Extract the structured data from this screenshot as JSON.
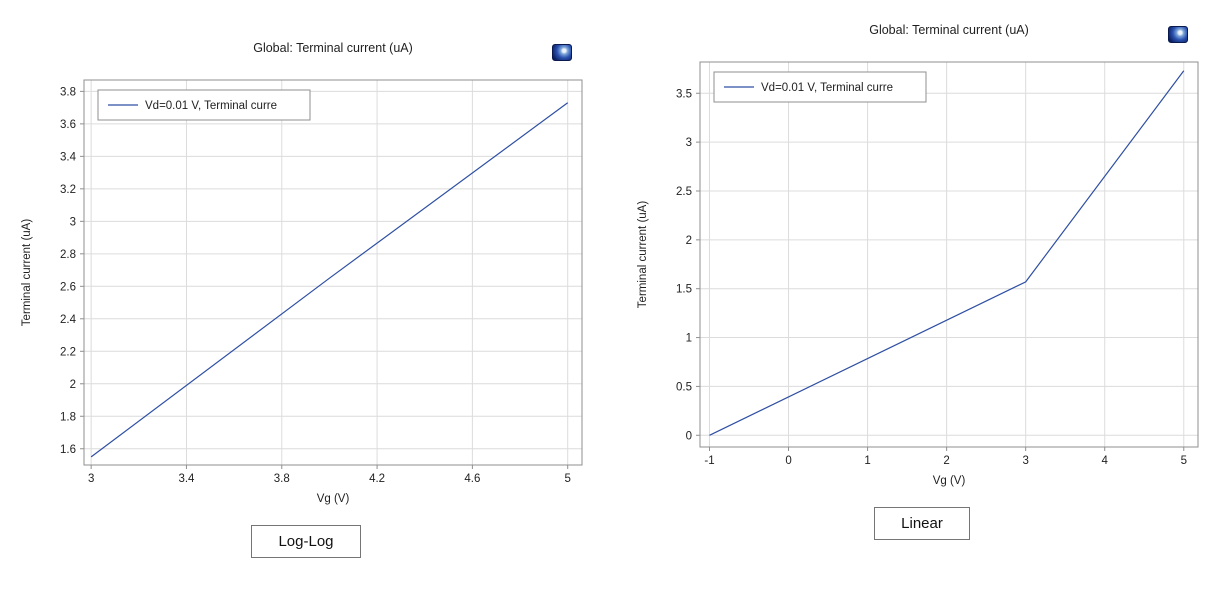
{
  "colors": {
    "line": "#2e4fa3",
    "grid": "#dcdcdc",
    "frame": "#8f8f8f",
    "text": "#1f1f1f",
    "caption_border": "#757575",
    "icon_navy": "#0a1c5a",
    "icon_blue": "#2a52b0"
  },
  "icons": {
    "comsol_logo": "comsol-logo-icon"
  },
  "chart_data": [
    {
      "type": "line",
      "title": "Global: Terminal current (uA)",
      "xlabel": "Vg (V)",
      "ylabel": "Terminal current (uA)",
      "caption": "Log-Log",
      "grid": true,
      "legend_position": "top-left",
      "x": [
        3,
        4,
        5
      ],
      "series": [
        {
          "name": "Vd=0.01 V, Terminal curre",
          "values": [
            1.55,
            2.65,
            3.73
          ]
        }
      ],
      "xlim": [
        2.97,
        5.06
      ],
      "ylim": [
        1.5,
        3.87
      ],
      "xticks": [
        3,
        3.4,
        3.8,
        4.2,
        4.6,
        5
      ],
      "yticks": [
        1.6,
        1.8,
        2,
        2.2,
        2.4,
        2.6,
        2.8,
        3,
        3.2,
        3.4,
        3.6,
        3.8
      ]
    },
    {
      "type": "line",
      "title": "Global: Terminal current (uA)",
      "xlabel": "Vg (V)",
      "ylabel": "Terminal current (uA)",
      "caption": "Linear",
      "grid": true,
      "legend_position": "top-left",
      "x": [
        -1,
        3,
        5
      ],
      "series": [
        {
          "name": "Vd=0.01 V, Terminal curre",
          "values": [
            0,
            1.57,
            3.73
          ]
        }
      ],
      "xlim": [
        -1.12,
        5.18
      ],
      "ylim": [
        -0.12,
        3.82
      ],
      "xticks": [
        -1,
        0,
        1,
        2,
        3,
        4,
        5
      ],
      "yticks": [
        0,
        0.5,
        1,
        1.5,
        2,
        2.5,
        3,
        3.5
      ]
    }
  ]
}
